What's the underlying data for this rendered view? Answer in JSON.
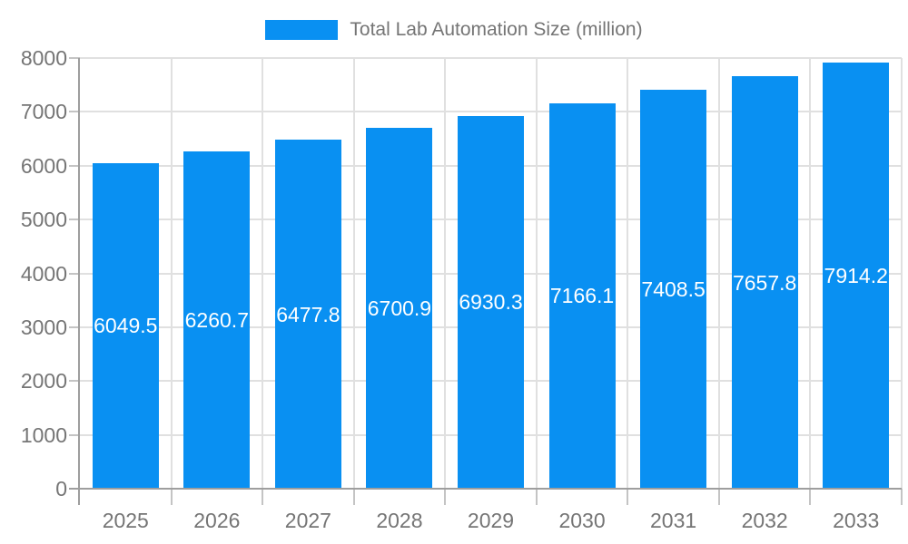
{
  "chart_data": {
    "type": "bar",
    "title": "Total Lab Automation Size (million)",
    "legend_position": "top-center",
    "categories": [
      "2025",
      "2026",
      "2027",
      "2028",
      "2029",
      "2030",
      "2031",
      "2032",
      "2033"
    ],
    "series": [
      {
        "name": "Total Lab Automation Size (million)",
        "values": [
          6049.5,
          6260.7,
          6477.8,
          6700.9,
          6930.3,
          7166.1,
          7408.5,
          7657.8,
          7914.2
        ]
      }
    ],
    "xlabel": "",
    "ylabel": "",
    "ylim": [
      0,
      8000
    ],
    "ytick_step": 1000,
    "ytick_labels": [
      "0",
      "1000",
      "2000",
      "3000",
      "4000",
      "5000",
      "6000",
      "7000",
      "8000"
    ],
    "grid": "horizontal and vertical light-gray gridlines on",
    "value_labels_position": "inside-bar-middle",
    "colors": {
      "bar": "#0990F2",
      "grid": "#e0e0e0",
      "tick": "#c4c4c4",
      "axis": "#9e9e9e",
      "axis_text": "#757575",
      "value_text": "#ffffff",
      "background": "#ffffff"
    }
  }
}
